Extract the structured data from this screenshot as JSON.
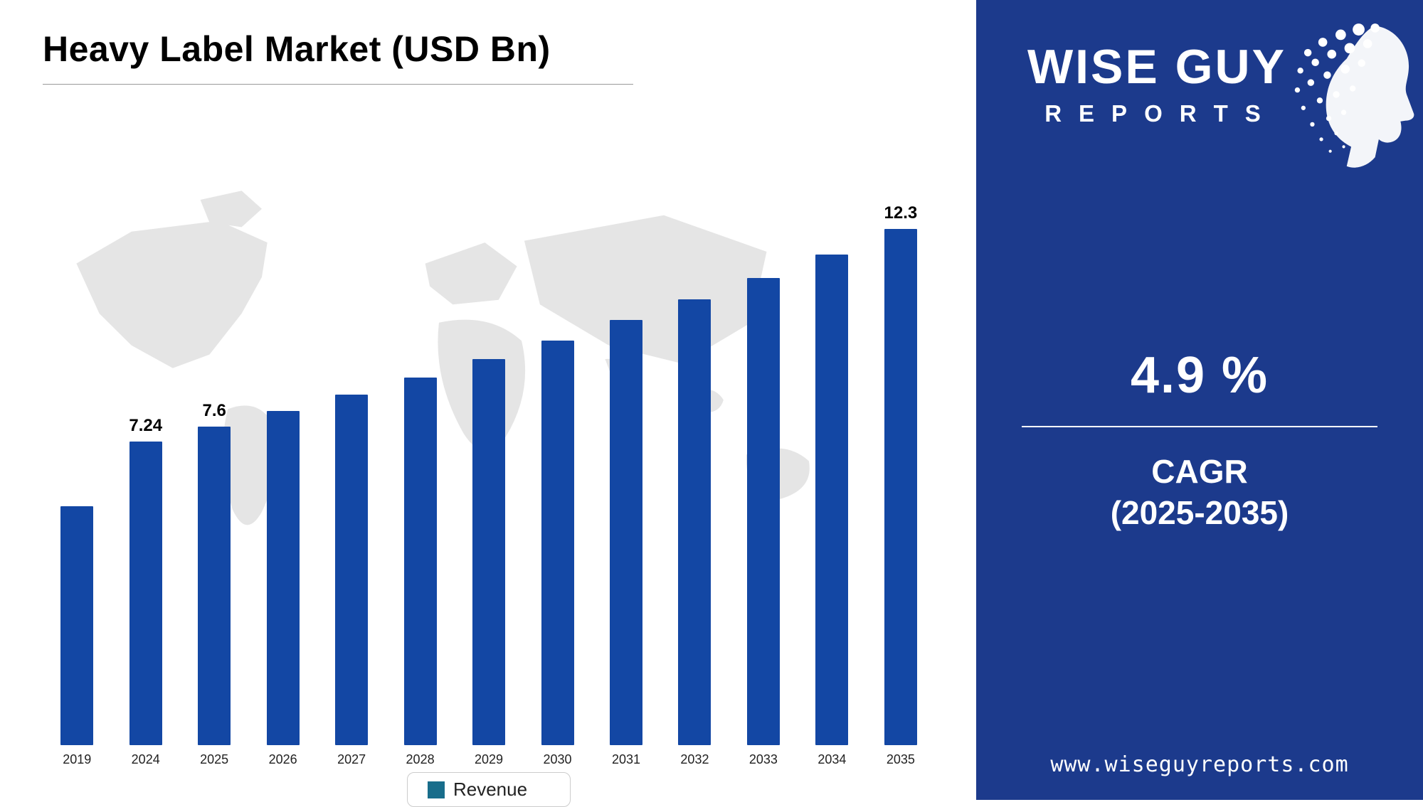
{
  "title": "Heavy Label Market (USD Bn)",
  "legend": {
    "label": "Revenue",
    "color": "#186d8b"
  },
  "chart_data": {
    "type": "bar",
    "title": "Heavy Label Market (USD Bn)",
    "categories": [
      "2019",
      "2024",
      "2025",
      "2026",
      "2027",
      "2028",
      "2029",
      "2030",
      "2031",
      "2032",
      "2033",
      "2034",
      "2035"
    ],
    "values": [
      5.7,
      7.24,
      7.6,
      7.97,
      8.36,
      8.77,
      9.2,
      9.65,
      10.13,
      10.62,
      11.14,
      11.69,
      12.3
    ],
    "bar_labels": [
      "",
      "7.24",
      "7.6",
      "",
      "",
      "",
      "",
      "",
      "",
      "",
      "",
      "",
      "12.3"
    ],
    "bar_color": "#1347a4",
    "xlabel": "",
    "ylabel": "",
    "ylim": [
      0,
      13
    ],
    "grid": false,
    "legend_position": "bottom"
  },
  "sidebar": {
    "logo_line1": "WISE GUY",
    "logo_line2": "REPORTS",
    "cagr_value": "4.9 %",
    "cagr_label": "CAGR",
    "cagr_range": "(2025-2035)",
    "website": "www.wiseguyreports.com",
    "bg_color": "#1c3a8c"
  }
}
